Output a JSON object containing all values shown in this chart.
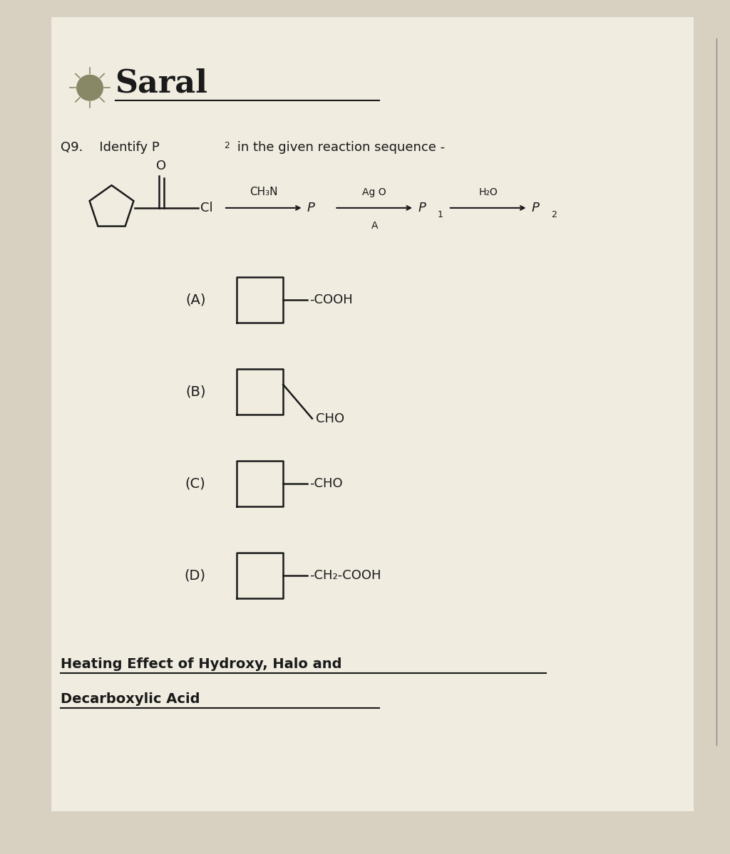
{
  "background_color": "#d8d0c0",
  "paper_color": "#f0ece0",
  "title": "Saral",
  "question_prefix": "Q9.    Identify P",
  "question_suffix": " in the given reaction sequence -",
  "footer_line1": "Heating Effect of Hydroxy, Halo and",
  "footer_line2": "Decarboxylic Acid",
  "options": [
    "(A)",
    "(B)",
    "(C)",
    "(D)"
  ],
  "reaction_arrow1_label": "CH₃N",
  "reaction_arrow2_label_top": "Ag O",
  "reaction_arrow2_label_bot": "A",
  "reaction_arrow3_label": "H₂O",
  "text_color": "#1a1a1a",
  "figsize": [
    10.24,
    11.99
  ],
  "dpi": 100
}
